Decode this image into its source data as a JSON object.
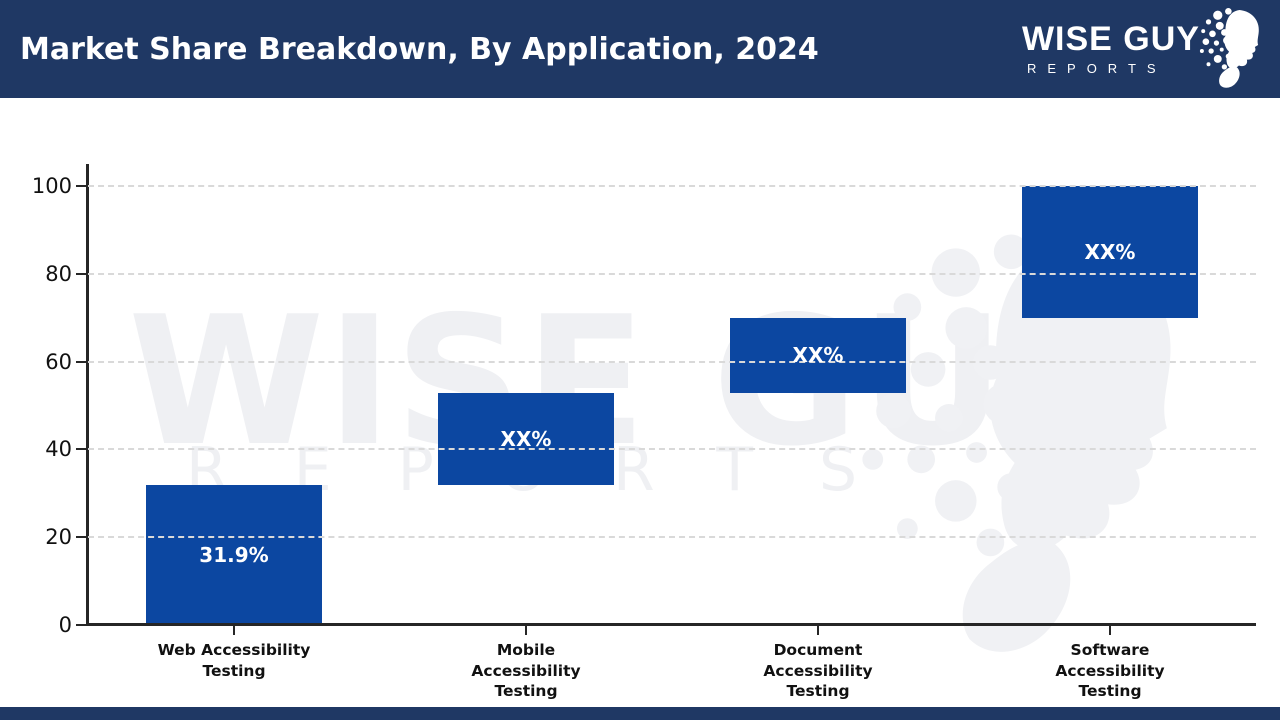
{
  "header": {
    "title": "Market Share Breakdown, By Application, 2024",
    "logo": {
      "line1": "WISE GUY",
      "line2": "REPORTS"
    }
  },
  "watermark": {
    "line1": "WISE GUY",
    "line2": "REPORTS"
  },
  "colors": {
    "header_bg": "#1f3864",
    "title_text": "#ffffff",
    "bar": "#0c47a1",
    "bar_label": "#ffffff",
    "grid": "#d9d9d9",
    "axis": "#262626",
    "watermark": "#eff0f3"
  },
  "chart_data": {
    "type": "bar",
    "subtype": "floating-waterfall-percentage",
    "title": "Market Share Breakdown, By Application, 2024",
    "categories": [
      "Web Accessibility Testing",
      "Mobile Accessibility Testing",
      "Document Accessibility Testing",
      "Software Accessibility Testing"
    ],
    "categories_lines": [
      [
        "Web Accessibility",
        "Testing"
      ],
      [
        "Mobile",
        "Accessibility",
        "Testing"
      ],
      [
        "Document",
        "Accessibility",
        "Testing"
      ],
      [
        "Software",
        "Accessibility",
        "Testing"
      ]
    ],
    "segments": [
      {
        "category": "Web Accessibility Testing",
        "start": 0,
        "end": 31.9,
        "label": "31.9%"
      },
      {
        "category": "Mobile Accessibility Testing",
        "start": 31.9,
        "end": 52.9,
        "label": "XX%"
      },
      {
        "category": "Document Accessibility Testing",
        "start": 52.9,
        "end": 69.9,
        "label": "XX%"
      },
      {
        "category": "Software Accessibility Testing",
        "start": 69.9,
        "end": 100,
        "label": "XX%"
      }
    ],
    "yticks": [
      0,
      20,
      40,
      60,
      80,
      100
    ],
    "ylim": [
      0,
      105
    ],
    "xlabel": "",
    "ylabel": "",
    "grid": "dashed-horizontal",
    "legend": "none",
    "layout": {
      "bar_width_ratio": 0.6
    }
  }
}
